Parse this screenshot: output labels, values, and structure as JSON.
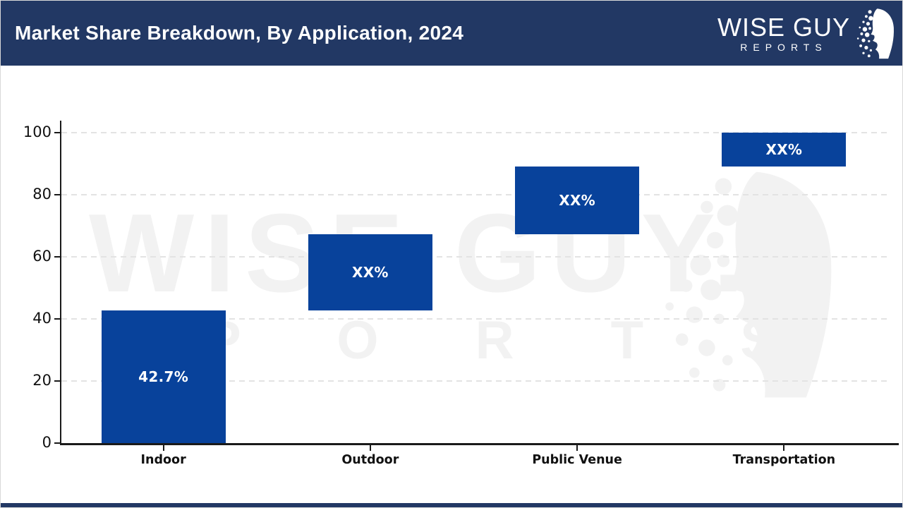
{
  "header": {
    "title": "Market Share Breakdown, By Application, 2024"
  },
  "logo": {
    "line1": "WISE GUY",
    "line2": "REPORTS",
    "head_icon": "dotted-head-icon"
  },
  "watermark": {
    "line1": "WISE GUY.",
    "line2": "P O R T S",
    "head_icon": "dotted-head-watermark-icon"
  },
  "colors": {
    "header_bg": "#223864",
    "footer_bg": "#223864",
    "bar": "#08429b",
    "bar_label_text": "#ffffff",
    "gridline": "#e3e3e3",
    "axis": "#1a1a1a",
    "watermark": "#f2f2f2"
  },
  "chart_data": {
    "type": "bar",
    "subtype": "waterfall-floating-segments",
    "title": "Market Share Breakdown, By Application, 2024",
    "xlabel": "",
    "ylabel": "",
    "categories": [
      "Indoor",
      "Outdoor",
      "Public Venue",
      "Transportation"
    ],
    "segments": [
      {
        "category": "Indoor",
        "start": 0,
        "end": 42.7,
        "label": "42.7%"
      },
      {
        "category": "Outdoor",
        "start": 42.7,
        "end": 67.3,
        "label": "XX%"
      },
      {
        "category": "Public Venue",
        "start": 67.3,
        "end": 89.1,
        "label": "XX%"
      },
      {
        "category": "Transportation",
        "start": 89.1,
        "end": 100,
        "label": "XX%"
      }
    ],
    "yticks": [
      0,
      20,
      40,
      60,
      80,
      100
    ],
    "ylim": [
      0,
      104
    ],
    "grid": "horizontal dashed",
    "legend": "none"
  }
}
